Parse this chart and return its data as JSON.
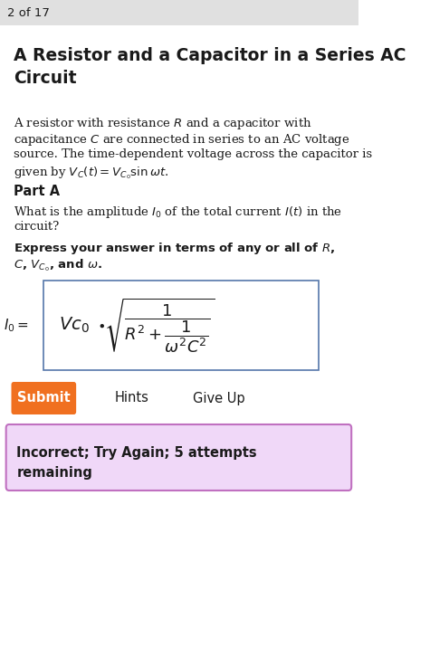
{
  "page_indicator": "2 of 17",
  "title": "A Resistor and a Capacitor in a Series AC\nCircuit",
  "body_text": "A resistor with resistance $R$ and a capacitor with\ncapacitance $C$ are connected in series to an AC voltage\nsource. The time-dependent voltage across the capacitor is\ngiven by $V_C(t) = V_{C_0}\\sin\\omega t$.",
  "part_label": "Part A",
  "question_text": "What is the amplitude $I_0$ of the total current $I(t)$ in the\ncircuit?",
  "bold_instruction": "Express your answer in terms of any or all of $R$,\n$C$, $V_{C_0}$, and $\\omega$.",
  "formula_lhs": "$I_0 =$",
  "submit_label": "Submit",
  "hints_label": "Hints",
  "giveup_label": "Give Up",
  "feedback_text": "Incorrect; Try Again; 5 attempts\nremaining",
  "header_bg": "#e0e0e0",
  "page_bg": "#ffffff",
  "submit_bg": "#f07020",
  "submit_fg": "#ffffff",
  "feedback_bg": "#f0d8f8",
  "feedback_border": "#c070c0",
  "formula_box_border": "#5577aa",
  "text_color": "#1a1a1a",
  "feedback_text_color": "#1a1a1a"
}
